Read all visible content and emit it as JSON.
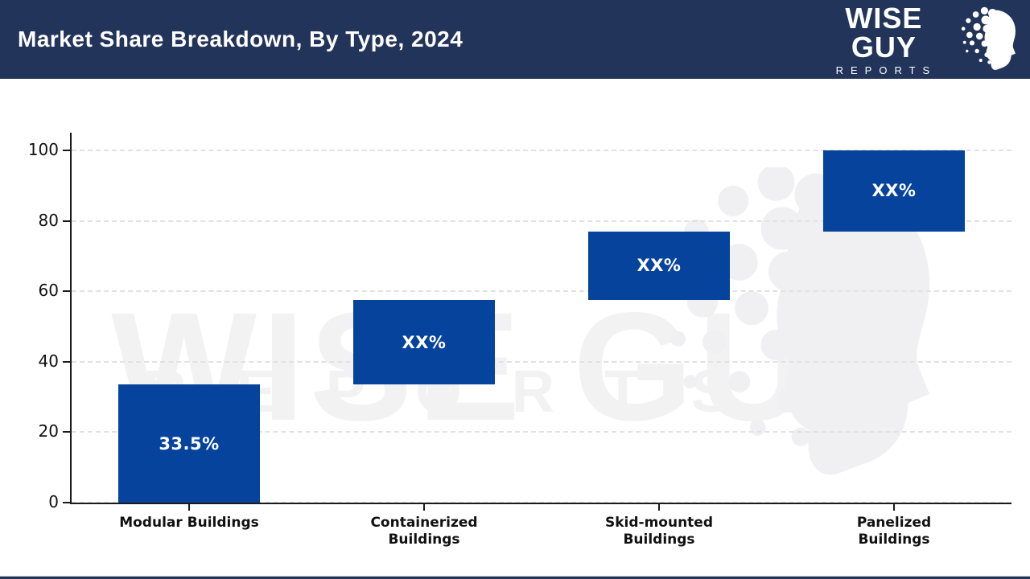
{
  "header": {
    "title": "Market Share Breakdown, By Type, 2024",
    "bg_color": "#223459",
    "text_color": "#ffffff",
    "logo": {
      "line1": "WISE GUY",
      "line2": "REPORTS"
    }
  },
  "watermark": {
    "line1": "WISE GUY",
    "line2": "REPORTS"
  },
  "chart_data": {
    "type": "bar",
    "subtype": "waterfall",
    "title": "Market Share Breakdown, By Type, 2024",
    "xlabel": "",
    "ylabel": "",
    "categories": [
      "Modular Buildings",
      "Containerized Buildings",
      "Skid-mounted Buildings",
      "Panelized Buildings"
    ],
    "category_lines": [
      [
        "Modular Buildings"
      ],
      [
        "Containerized",
        "Buildings"
      ],
      [
        "Skid-mounted",
        "Buildings"
      ],
      [
        "Panelized",
        "Buildings"
      ]
    ],
    "bars": [
      {
        "category": "Modular Buildings",
        "start": 0,
        "end": 33.5,
        "label": "33.5%"
      },
      {
        "category": "Containerized Buildings",
        "start": 33.5,
        "end": 57.5,
        "label": "XX%"
      },
      {
        "category": "Skid-mounted Buildings",
        "start": 57.5,
        "end": 77,
        "label": "XX%"
      },
      {
        "category": "Panelized Buildings",
        "start": 77,
        "end": 100,
        "label": "XX%"
      }
    ],
    "yticks": [
      0,
      20,
      40,
      60,
      80,
      100
    ],
    "ylim": [
      0,
      105
    ],
    "grid": "horizontal-dashed",
    "legend": "none",
    "bar_color": "#05439c",
    "bar_label_color": "#ffffff"
  },
  "footer": {
    "bar_color": "#223459"
  }
}
